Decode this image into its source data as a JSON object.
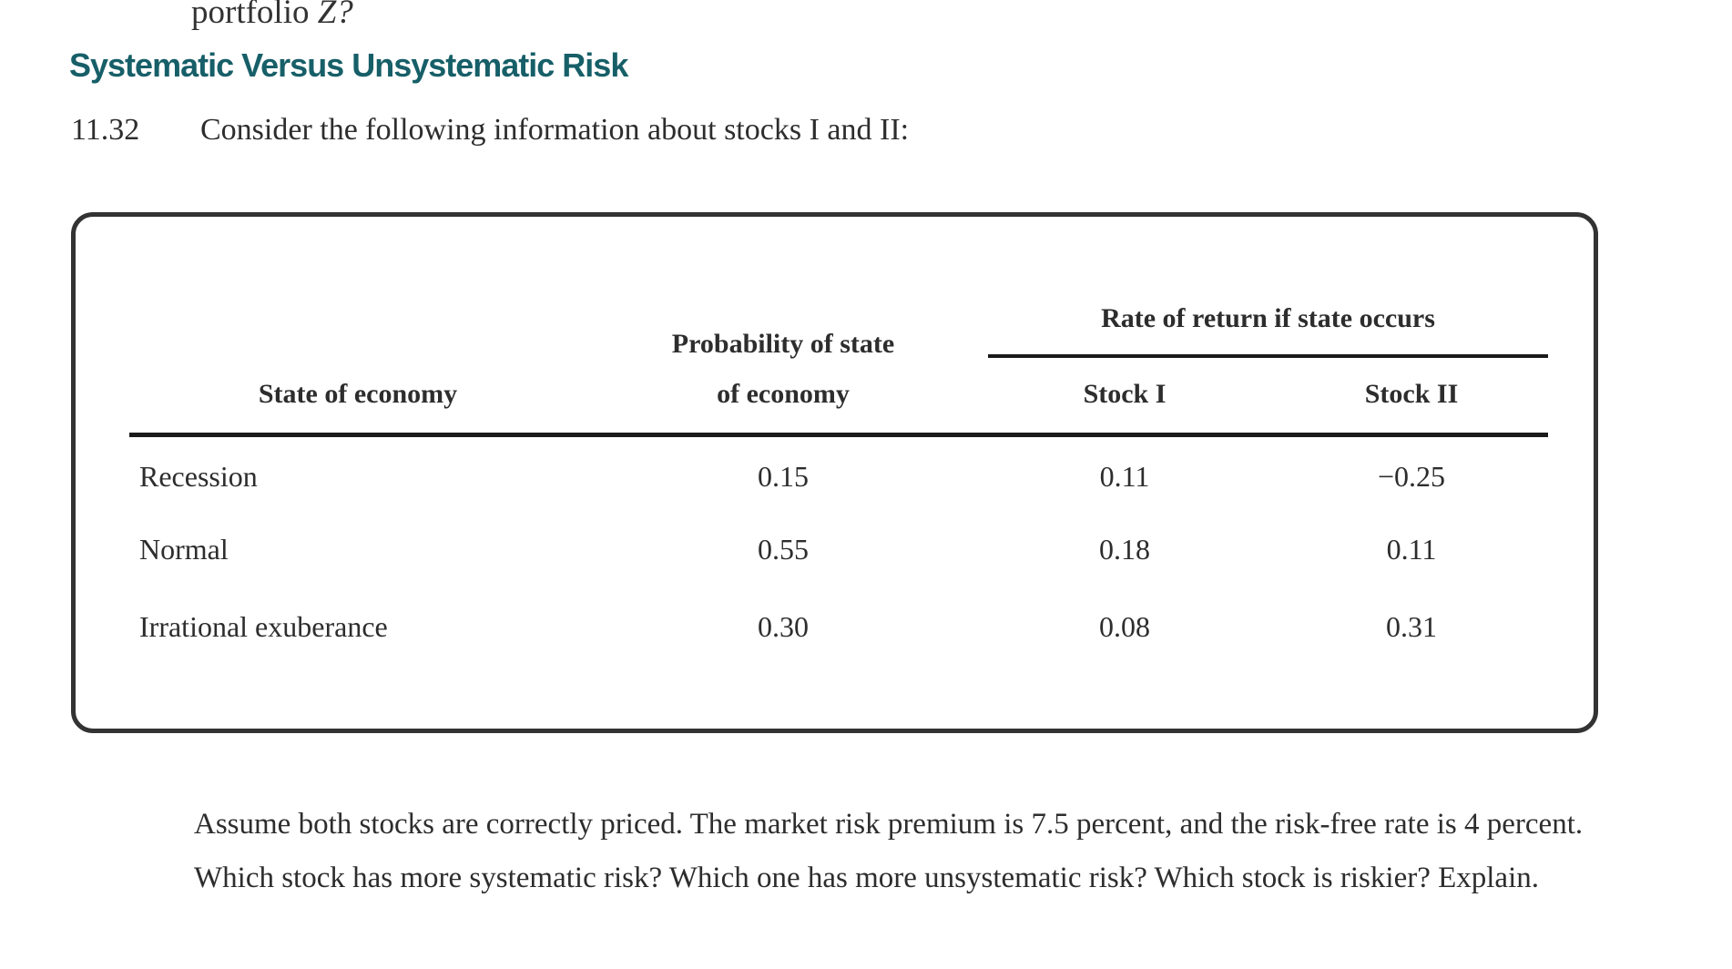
{
  "page": {
    "previous_fragment_prefix": "portfolio ",
    "previous_fragment_variable": "Z?",
    "section_heading": "Systematic Versus Unsystematic Risk",
    "problem_number": "11.32",
    "problem_intro": "Consider the following information about stocks I and II:",
    "closing_paragraph": "Assume both stocks are correctly priced. The market risk premium is 7.5 percent, and the risk-free rate is 4 percent. Which stock has more systematic risk? Which one has more unsystematic risk? Which stock is riskier? Explain."
  },
  "colors": {
    "heading_teal": "#175f68",
    "body_text": "#2d2d2d",
    "box_border": "#333333",
    "rule_black": "#1a1a1a"
  },
  "table": {
    "spanner_header": "Rate of return if state occurs",
    "columns": {
      "state": "State of economy",
      "probability_line1": "Probability of state",
      "probability_line2": "of economy",
      "stock1": "Stock I",
      "stock2": "Stock II"
    },
    "rows": [
      {
        "state": "Recession",
        "probability": "0.15",
        "stock1": "0.11",
        "stock2": "−0.25"
      },
      {
        "state": "Normal",
        "probability": "0.55",
        "stock1": "0.18",
        "stock2": "0.11"
      },
      {
        "state": "Irrational exuberance",
        "probability": "0.30",
        "stock1": "0.08",
        "stock2": "0.31"
      }
    ]
  }
}
